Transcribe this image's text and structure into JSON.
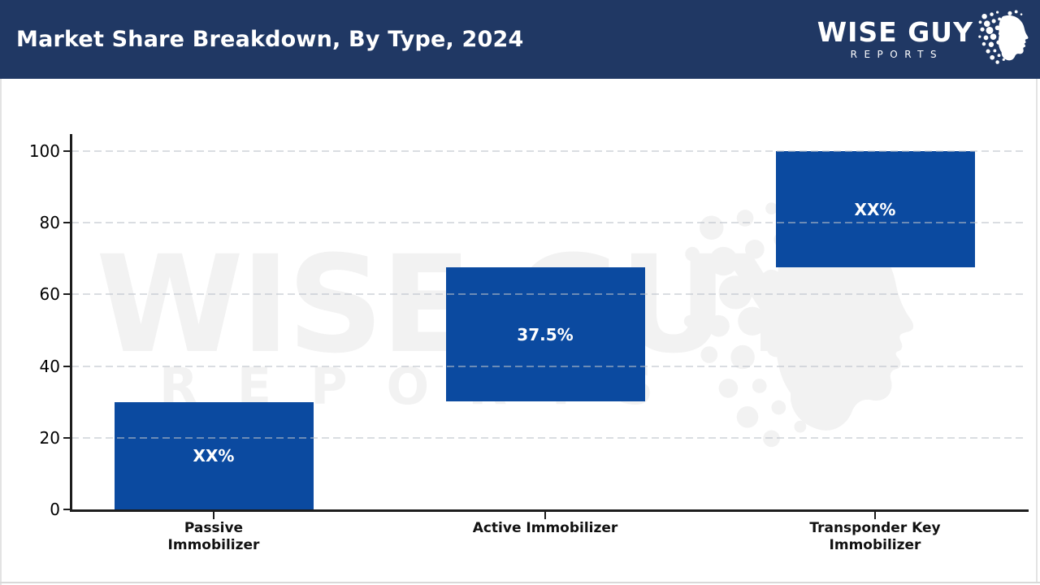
{
  "header": {
    "title": "Market Share Breakdown, By Type, 2024",
    "logo": {
      "brand": "WISE GUY",
      "sub": "REPORTS"
    }
  },
  "watermark": {
    "brand": "WISE GUY",
    "sub": "REPORTS"
  },
  "chart_data": {
    "type": "bar",
    "subtype": "floating-segment-waterfall",
    "title": "Market Share Breakdown, By Type, 2024",
    "categories": [
      "Passive Immobilizer",
      "Active Immobilizer",
      "Transponder Key Immobilizer"
    ],
    "category_labels": [
      "Passive\nImmobilizer",
      "Active Immobilizer",
      "Transponder Key\nImmobilizer"
    ],
    "bars": [
      {
        "category": "Passive Immobilizer",
        "from": 0,
        "to": 30,
        "label": "XX%"
      },
      {
        "category": "Active Immobilizer",
        "from": 30,
        "to": 67.5,
        "label": "37.5%"
      },
      {
        "category": "Transponder Key Immobilizer",
        "from": 67.5,
        "to": 100,
        "label": "XX%"
      }
    ],
    "yticks": [
      0,
      20,
      40,
      60,
      80,
      100
    ],
    "ylim": [
      0,
      100
    ],
    "xlabel": "",
    "ylabel": "",
    "grid": "horizontal dashed, drawn over bars",
    "legend": "none",
    "bar_color": "#0b4aa0",
    "bar_label_color": "#ffffff"
  },
  "colors": {
    "header_bg": "#203864",
    "bar": "#0b4aa0",
    "axis": "#1d1d1d",
    "grid": "#c5cad1",
    "watermark": "#f2f2f2"
  }
}
